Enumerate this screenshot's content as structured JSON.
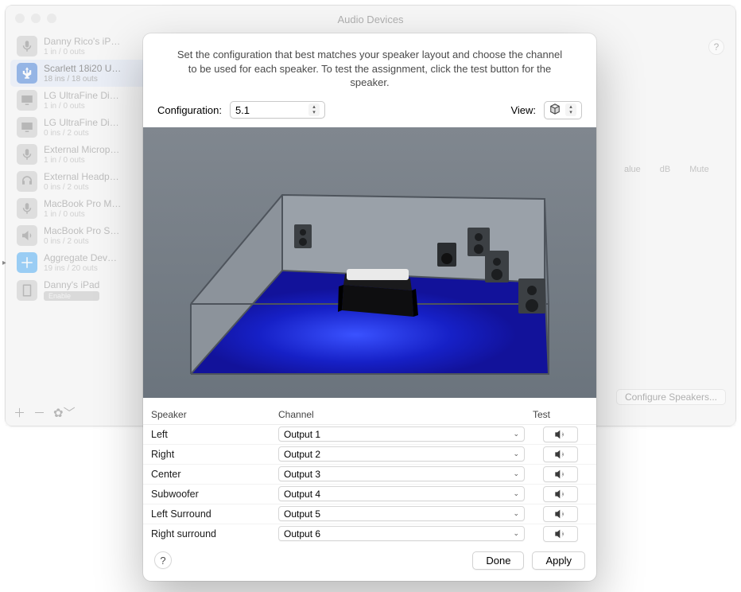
{
  "window_title": "Audio Devices",
  "sidebar": {
    "devices": [
      {
        "name": "Danny Rico's iP…",
        "sub": "1 in / 0 outs",
        "icon": "mic",
        "selected": false
      },
      {
        "name": "Scarlett 18i20 U…",
        "sub": "18 ins / 18 outs",
        "icon": "usb",
        "selected": true
      },
      {
        "name": "LG UltraFine Di…",
        "sub": "1 in / 0 outs",
        "icon": "display",
        "selected": false
      },
      {
        "name": "LG UltraFine Di…",
        "sub": "0 ins / 2 outs",
        "icon": "display",
        "selected": false
      },
      {
        "name": "External Microp…",
        "sub": "1 in / 0 outs",
        "icon": "mic",
        "selected": false
      },
      {
        "name": "External Headp…",
        "sub": "0 ins / 2 outs",
        "icon": "headphones",
        "selected": false
      },
      {
        "name": "MacBook Pro M…",
        "sub": "1 in / 0 outs",
        "icon": "mic",
        "selected": false
      },
      {
        "name": "MacBook Pro S…",
        "sub": "0 ins / 2 outs",
        "icon": "speaker",
        "selected": false
      },
      {
        "name": "Aggregate Dev…",
        "sub": "19 ins / 20 outs",
        "icon": "aggregate",
        "selected": false,
        "disclosure": true
      },
      {
        "name": "Danny's iPad",
        "sub": "",
        "icon": "ipad",
        "selected": false,
        "enable": true
      }
    ],
    "enable_label": "Enable"
  },
  "bg": {
    "cols": [
      "alue",
      "dB",
      "Mute"
    ],
    "configure_btn": "Configure Speakers..."
  },
  "dialog": {
    "message": "Set the configuration that best matches your speaker layout and choose the channel to be used for each speaker. To test the assignment, click the test button for the speaker.",
    "config_label": "Configuration:",
    "config_value": "5.1",
    "view_label": "View:",
    "headers": {
      "speaker": "Speaker",
      "channel": "Channel",
      "test": "Test"
    },
    "rows": [
      {
        "speaker": "Left",
        "channel": "Output 1"
      },
      {
        "speaker": "Right",
        "channel": "Output 2"
      },
      {
        "speaker": "Center",
        "channel": "Output 3"
      },
      {
        "speaker": "Subwoofer",
        "channel": "Output 4"
      },
      {
        "speaker": "Left Surround",
        "channel": "Output 5"
      },
      {
        "speaker": "Right surround",
        "channel": "Output 6"
      }
    ],
    "help": "?",
    "done": "Done",
    "apply": "Apply"
  },
  "room3d": {
    "floor_color": "#1a1ebf",
    "glow_color": "#2b3af5",
    "wall_color": "#9ea5ad",
    "edge_color": "#50565e",
    "couch_color": "#18181a",
    "speaker_color": "#3f4347"
  }
}
